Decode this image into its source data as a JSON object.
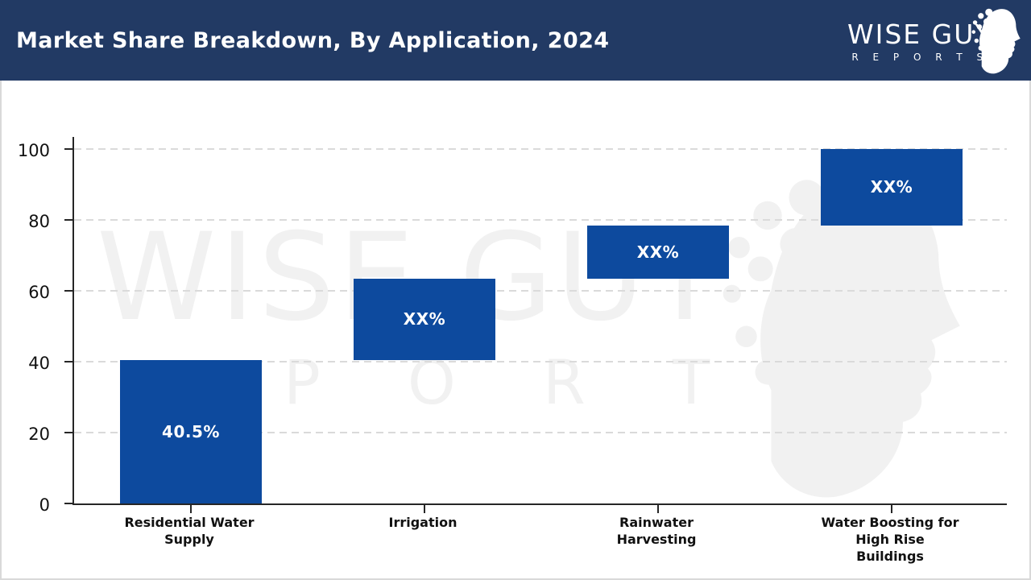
{
  "header": {
    "title": "Market Share Breakdown, By Application, 2024",
    "logo_line1": "WISE GUY",
    "logo_line2": "R E P O R T S"
  },
  "watermark": {
    "line1": "WISE GUY",
    "line2": "P O R T S"
  },
  "colors": {
    "header_bg": "#223a64",
    "bar": "#0d4a9e",
    "bar_label": "#ffffff",
    "grid": "#dadada",
    "axis": "#262626",
    "watermark": "#f1f1f1"
  },
  "chart_data": {
    "type": "bar",
    "variant": "waterfall-segments",
    "title": "Market Share Breakdown, By Application, 2024",
    "xlabel": "",
    "ylabel": "",
    "ylim": [
      0,
      104
    ],
    "yticks": [
      0,
      20,
      40,
      60,
      80,
      100
    ],
    "grid": "horizontal-dashed",
    "legend": "none",
    "categories": [
      "Residential Water\nSupply",
      "Irrigation",
      "Rainwater\nHarvesting",
      "Water Boosting for\nHigh Rise\nBuildings"
    ],
    "bars": [
      {
        "category": "Residential Water Supply",
        "start": 0,
        "end": 40.5,
        "value_label": "40.5%"
      },
      {
        "category": "Irrigation",
        "start": 40.5,
        "end": 63.5,
        "value_label": "XX%"
      },
      {
        "category": "Rainwater Harvesting",
        "start": 63.5,
        "end": 78.5,
        "value_label": "XX%"
      },
      {
        "category": "Water Boosting for High Rise Buildings",
        "start": 78.5,
        "end": 100,
        "value_label": "XX%"
      }
    ]
  }
}
